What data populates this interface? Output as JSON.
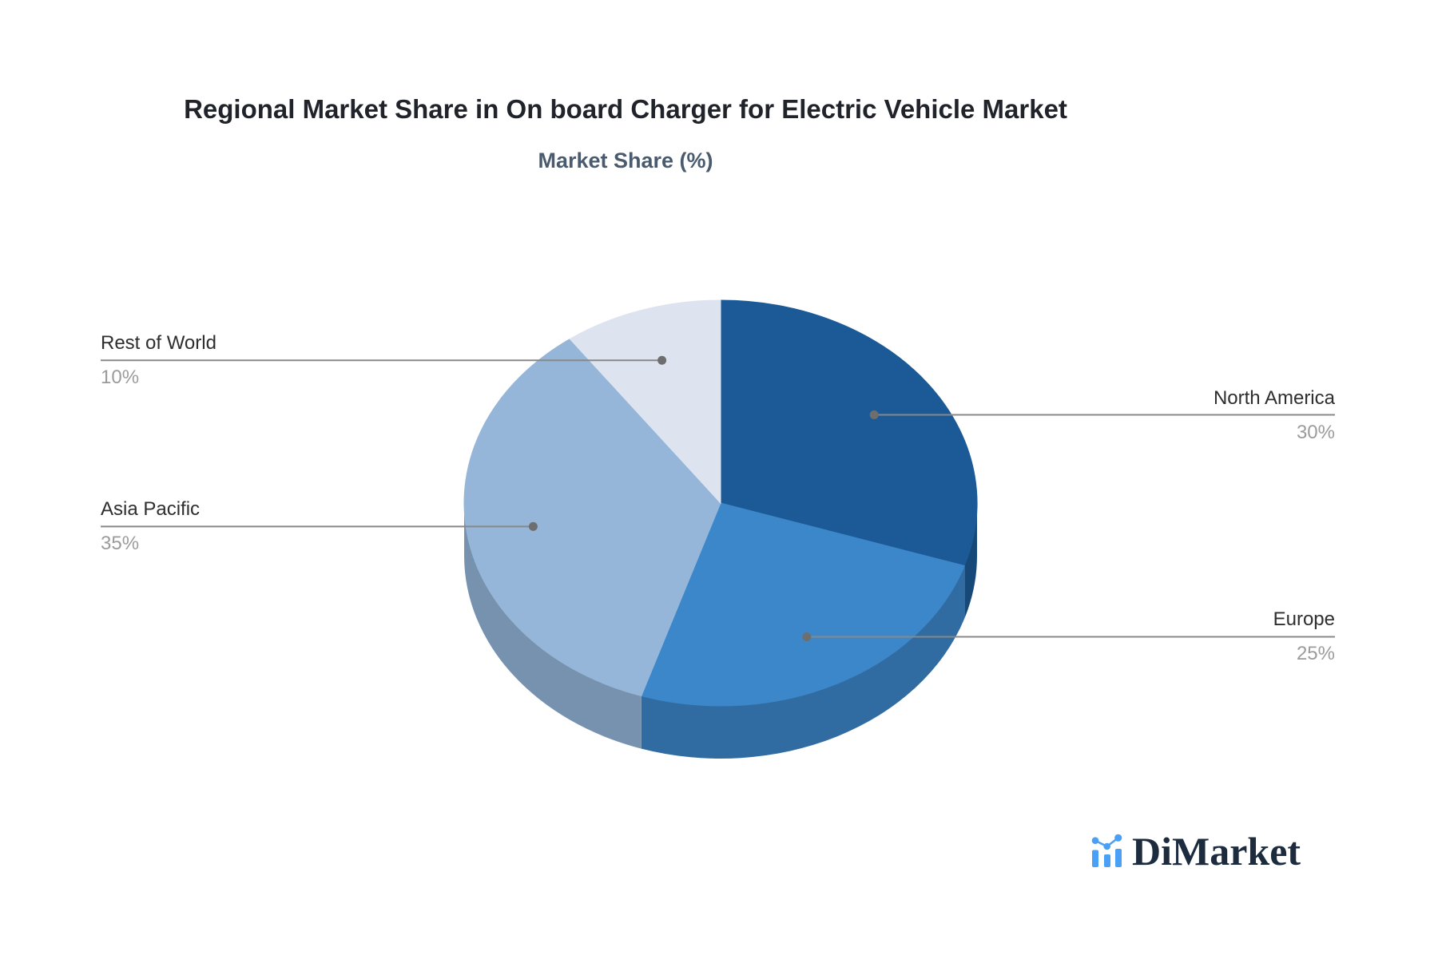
{
  "page": {
    "background": "#ffffff"
  },
  "header": {
    "title": "Regional Market Share in On board Charger for Electric Vehicle Market",
    "subtitle": "Market Share (%)"
  },
  "brand": {
    "name": "DiMarket",
    "icon": "bar-line-chart-icon",
    "icon_color": "#49a0f5",
    "text_color": "#1c2b3e"
  },
  "chart_data": {
    "type": "pie",
    "style": "3d",
    "title": "Regional Market Share in On board Charger for Electric Vehicle Market",
    "subtitle": "Market Share (%)",
    "unit": "%",
    "direction": "clockwise",
    "start_angle_deg": 0,
    "legend_position": "callout-labels",
    "slices": [
      {
        "label": "North America",
        "value": 30,
        "pct_label": "30%",
        "color": "#1b5a96",
        "callout_side": "right"
      },
      {
        "label": "Europe",
        "value": 25,
        "pct_label": "25%",
        "color": "#3c87c9",
        "callout_side": "right"
      },
      {
        "label": "Asia Pacific",
        "value": 35,
        "pct_label": "35%",
        "color": "#95b6d9",
        "callout_side": "left"
      },
      {
        "label": "Rest of World",
        "value": 10,
        "pct_label": "10%",
        "color": "#dde4ef",
        "callout_side": "left"
      }
    ],
    "callout": {
      "line_color": "#888888",
      "dot_color": "#6e6e6e",
      "label_color": "#2e2e2e",
      "pct_color": "#9b9b9b"
    }
  }
}
